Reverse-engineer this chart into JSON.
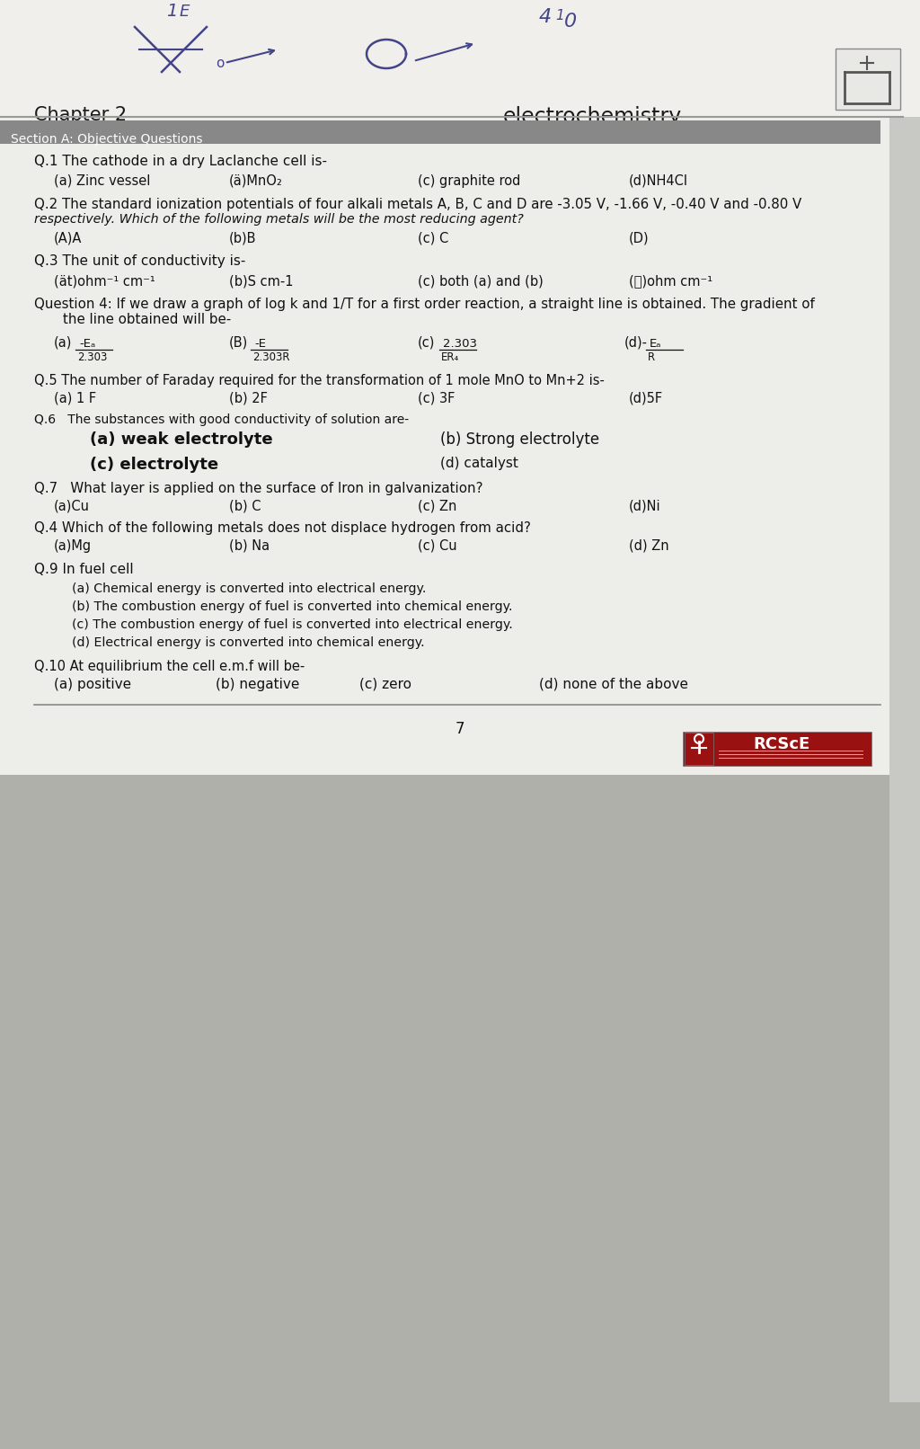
{
  "bg_color": "#b8bcc0",
  "page_bg": "#f0eeeb",
  "header_chapter": "Chapter 2",
  "header_subject": "electrochemistry",
  "section_header": "Section A: Objective Questions",
  "section_header_bg": "#7a7a7a",
  "q1_text": "Q.1 The cathode in a dry Laclanche cell is-",
  "q1_opts": [
    "(a) Zinc vessel",
    "(ä)MnO₂",
    "(c) graphite rod",
    "(d)NH4Cl"
  ],
  "q2_text": "Q.2 The standard ionization potentials of four alkali metals A, B, C and D are -3.05 V, -1.66 V, -0.40 V and -0.80 V",
  "q2_cont": "respectively. Which of the following metals will be the most reducing agent?",
  "q2_opts": [
    "(A)A",
    "(b)B",
    "(c) C",
    "(D)"
  ],
  "q3_text": "Q.3 The unit of conductivity is-",
  "q3_opts": [
    "(ät)ohm⁻¹ cm⁻¹",
    "(b)S cm-1",
    "(c) both (a) and (b)",
    "(द)ohm cm⁻¹"
  ],
  "q4_text": "Question 4: If we draw a graph of log k and 1/T for a first order reaction, a straight line is obtained. The gradient of",
  "q4_text2": "the line obtained will be-",
  "q5_text": "Q.5 The number of Faraday required for the transformation of 1 mole MnO to Mn+2 is-",
  "q5_opts": [
    "(a) 1 F",
    "(b) 2F",
    "(c) 3F",
    "(d)5F"
  ],
  "q6_text": "Q.6   The substances with good conductivity of solution are-",
  "q6_opts": [
    "(a) weak electrolyte",
    "(b) Strong electrolyte",
    "(c) electrolyte",
    "(d) catalyst"
  ],
  "q7_text": "Q.7   What layer is applied on the surface of Iron in galvanization?",
  "q7_opts": [
    "(a)Cu",
    "(b) C",
    "(c) Zn",
    "(d)Ni"
  ],
  "q8_text": "Q.4 Which of the following metals does not displace hydrogen from acid?",
  "q8_opts": [
    "(a)Mg",
    "(b) Na",
    "(c) Cu",
    "(d) Zn"
  ],
  "q9_text": "Q.9 In fuel cell",
  "q9_opts": [
    "(a) Chemical energy is converted into electrical energy.",
    "(b) The combustion energy of fuel is converted into chemical energy.",
    "(c) The combustion energy of fuel is converted into electrical energy.",
    "(d) Electrical energy is converted into chemical energy."
  ],
  "q10_text": "Q.10 At equilibrium the cell e.m.f will be-",
  "q10_opts": [
    "(a) positive",
    "(b) negative",
    "(c) zero",
    "(d) none of the above"
  ],
  "footer_page": "7"
}
